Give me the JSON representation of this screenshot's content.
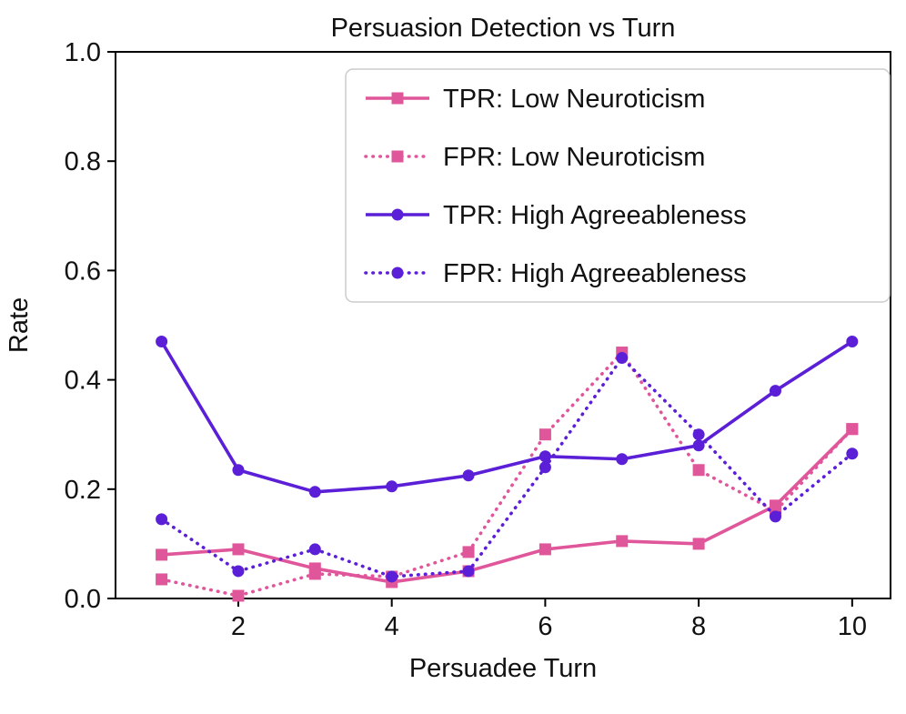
{
  "chart_data": {
    "type": "line",
    "title": "Persuasion Detection vs Turn",
    "xlabel": "Persuadee Turn",
    "ylabel": "Rate",
    "xlim": [
      0.4,
      10.5
    ],
    "ylim": [
      0.0,
      1.0
    ],
    "xticks": [
      2,
      4,
      6,
      8,
      10
    ],
    "yticks": [
      "0.0",
      "0.2",
      "0.4",
      "0.6",
      "0.8",
      "1.0"
    ],
    "grid": false,
    "legend_position": "upper center",
    "x": [
      1,
      2,
      3,
      4,
      5,
      6,
      7,
      8,
      9,
      10
    ],
    "series": [
      {
        "name": "TPR: Low Neuroticism",
        "color": "#e0569b",
        "line": "solid",
        "marker": "square",
        "values": [
          0.08,
          0.09,
          0.055,
          0.03,
          0.05,
          0.09,
          0.105,
          0.1,
          0.17,
          0.31
        ]
      },
      {
        "name": "FPR: Low Neuroticism",
        "color": "#e0569b",
        "line": "dotted",
        "marker": "square",
        "values": [
          0.035,
          0.005,
          0.045,
          0.04,
          0.085,
          0.3,
          0.45,
          0.235,
          0.16,
          0.31
        ]
      },
      {
        "name": "TPR: High Agreeableness",
        "color": "#5a1fd6",
        "line": "solid",
        "marker": "circle",
        "values": [
          0.47,
          0.235,
          0.195,
          0.205,
          0.225,
          0.26,
          0.255,
          0.28,
          0.38,
          0.47
        ]
      },
      {
        "name": "FPR: High Agreeableness",
        "color": "#5a1fd6",
        "line": "dotted",
        "marker": "circle",
        "values": [
          0.145,
          0.05,
          0.09,
          0.04,
          0.05,
          0.24,
          0.44,
          0.3,
          0.15,
          0.265
        ]
      }
    ]
  }
}
